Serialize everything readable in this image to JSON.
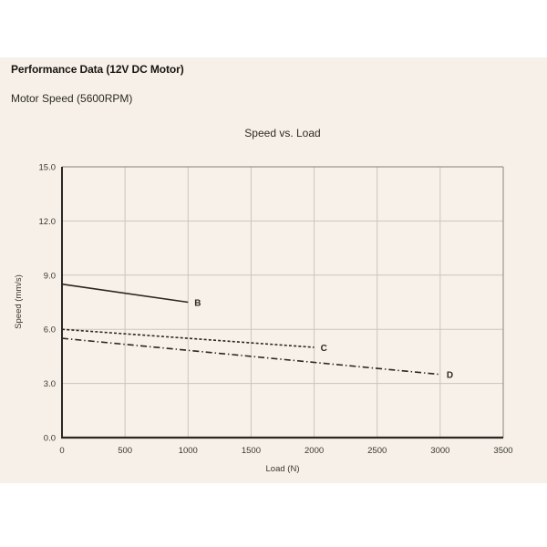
{
  "page": {
    "heading": "Performance Data (12V DC Motor)",
    "subtitle": "Motor Speed (5600RPM)"
  },
  "chart_data": {
    "type": "line",
    "title": "Speed vs. Load",
    "xlabel": "Load (N)",
    "ylabel": "Speed (mm/s)",
    "xlim": [
      0,
      3500
    ],
    "ylim": [
      0,
      15
    ],
    "x_ticks": [
      0,
      500,
      1000,
      1500,
      2000,
      2500,
      3000,
      3500
    ],
    "x_tick_labels": [
      "0",
      "500",
      "1000",
      "1500",
      "2000",
      "2500",
      "3000",
      "3500"
    ],
    "y_ticks": [
      0,
      3,
      6,
      9,
      12,
      15
    ],
    "y_tick_labels": [
      "0.0",
      "3.0",
      "6.0",
      "9.0",
      "12.0",
      "15.0"
    ],
    "grid": true,
    "legend_position": "none",
    "label_position": "line-end",
    "series": [
      {
        "name": "B",
        "line_style": "solid",
        "points": [
          [
            0,
            8.5
          ],
          [
            1000,
            7.5
          ]
        ]
      },
      {
        "name": "C",
        "line_style": "dashed",
        "points": [
          [
            0,
            6.0
          ],
          [
            2000,
            5.0
          ]
        ]
      },
      {
        "name": "D",
        "line_style": "dashdot",
        "points": [
          [
            0,
            5.5
          ],
          [
            3000,
            3.5
          ]
        ]
      }
    ],
    "colors": {
      "panel_background": "#f6f0e8",
      "plot_background": "#f7f1e9",
      "line": "#2b2722",
      "grid": "#cbc5bc",
      "frame": "#9b968e",
      "axis": "#2b2722",
      "text": "#2e2a24",
      "tick_text": "#3a362f"
    }
  }
}
